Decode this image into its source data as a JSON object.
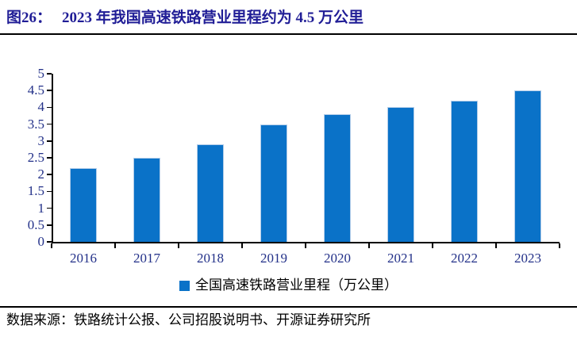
{
  "header": {
    "figure_label": "图26：",
    "title": "2023 年我国高速铁路营业里程约为 4.5 万公里"
  },
  "chart_data": {
    "type": "bar",
    "title": "2023 年我国高速铁路营业里程约为 4.5 万公里",
    "categories": [
      "2016",
      "2017",
      "2018",
      "2019",
      "2020",
      "2021",
      "2022",
      "2023"
    ],
    "values": [
      2.2,
      2.5,
      2.9,
      3.5,
      3.8,
      4.0,
      4.2,
      4.5
    ],
    "series_name": "全国高速铁路营业里程（万公里）",
    "xlabel": "",
    "ylabel": "",
    "ylim": [
      0,
      5
    ],
    "ytick_step": 0.5,
    "grid": false,
    "legend_position": "bottom"
  },
  "legend": {
    "marker": "square-icon",
    "label": "全国高速铁路营业里程（万公里）"
  },
  "footer": {
    "source_text": "数据来源：铁路统计公报、公司招股说明书、开源证券研究所"
  },
  "colors": {
    "bar_fill": "#0a72c8",
    "bar_edge": "#b3cde9",
    "title_text": "#201d96",
    "axis_label_text": "#233189",
    "axis_line": "#000000",
    "divider": "#000000",
    "legend_text": "#000000",
    "source_text": "#000000"
  }
}
